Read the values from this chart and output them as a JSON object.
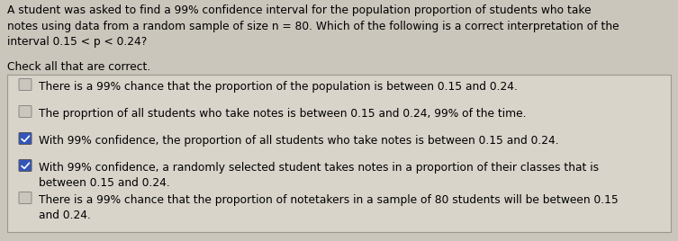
{
  "bg_color": "#cac6bc",
  "box_bg_color": "#d8d4ca",
  "box_border_color": "#999990",
  "question_text": "A student was asked to find a 99% confidence interval for the population proportion of students who take\nnotes using data from a random sample of size n = 80. Which of the following is a correct interpretation of the\ninterval 0.15 < p < 0.24?",
  "subheading": "Check all that are correct.",
  "options": [
    {
      "text": "There is a 99% chance that the proportion of the population is between 0.15 and 0.24.",
      "checked": false,
      "multiline": false
    },
    {
      "text": "The proprtion of all students who take notes is between 0.15 and 0.24, 99% of the time.",
      "checked": false,
      "multiline": false
    },
    {
      "text": "With 99% confidence, the proportion of all students who take notes is between 0.15 and 0.24.",
      "checked": true,
      "multiline": false
    },
    {
      "text": "With 99% confidence, a randomly selected student takes notes in a proportion of their classes that is\nbetween 0.15 and 0.24.",
      "checked": true,
      "multiline": true
    },
    {
      "text": "There is a 99% chance that the proportion of notetakers in a sample of 80 students will be between 0.15\nand 0.24.",
      "checked": false,
      "multiline": true
    }
  ],
  "check_color": "#3355bb",
  "check_border_color": "#555555",
  "uncheck_border_color": "#888888",
  "question_fontsize": 8.8,
  "option_fontsize": 8.8,
  "subheading_fontsize": 8.8
}
